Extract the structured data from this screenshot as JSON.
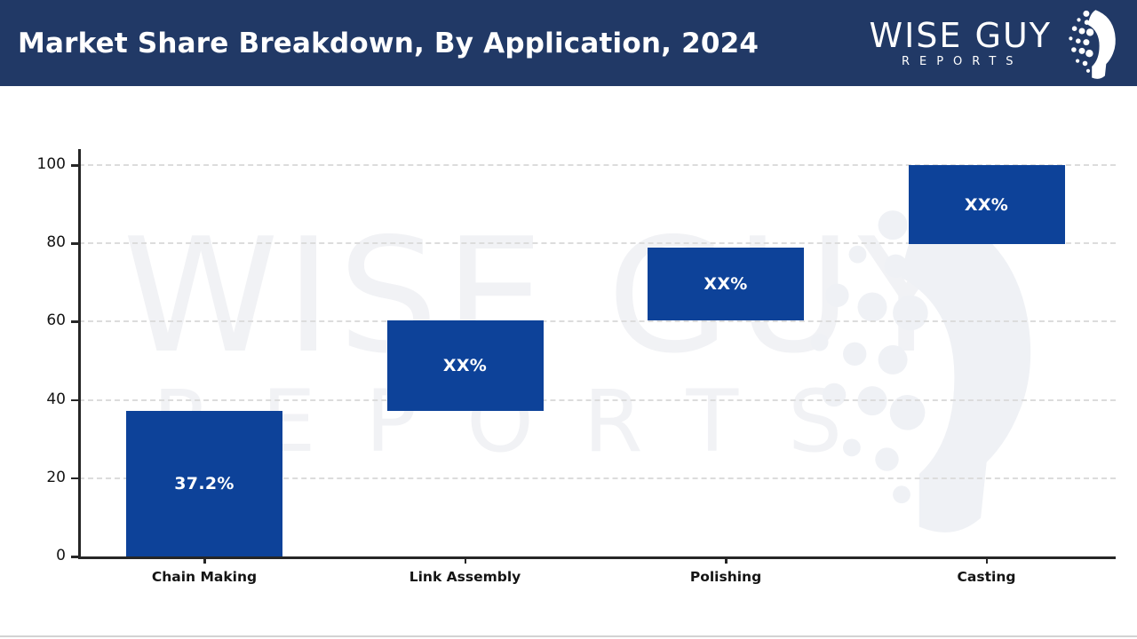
{
  "header": {
    "title": "Market Share Breakdown, By Application, 2024",
    "logo": {
      "line1": "WISE GUY",
      "line2": "REPORTS"
    }
  },
  "watermark": {
    "line1": "WISE GUY",
    "line2": "REPORTS"
  },
  "colors": {
    "header_bg": "#213966",
    "bar": "#0d4299",
    "grid": "#dcdcdc",
    "axis": "#262626",
    "bar_label": "#ffffff",
    "watermark": "#f1f2f5",
    "bottom_rule": "#d3d3d3"
  },
  "chart_data": {
    "type": "bar",
    "subtype": "waterfall",
    "title": "Market Share Breakdown, By Application, 2024",
    "categories": [
      "Chain Making",
      "Link Assembly",
      "Polishing",
      "Casting"
    ],
    "segments": [
      [
        0,
        37.2
      ],
      [
        37.2,
        60.3
      ],
      [
        60.3,
        79.0
      ],
      [
        79.8,
        100
      ]
    ],
    "bar_labels": [
      "37.2%",
      "XX%",
      "XX%",
      "XX%"
    ],
    "xlabel": "",
    "ylabel": "",
    "ylim": [
      0,
      100
    ],
    "yticks": [
      0,
      20,
      40,
      60,
      80,
      100
    ],
    "grid": "horizontal-dashed",
    "legend": "none"
  }
}
